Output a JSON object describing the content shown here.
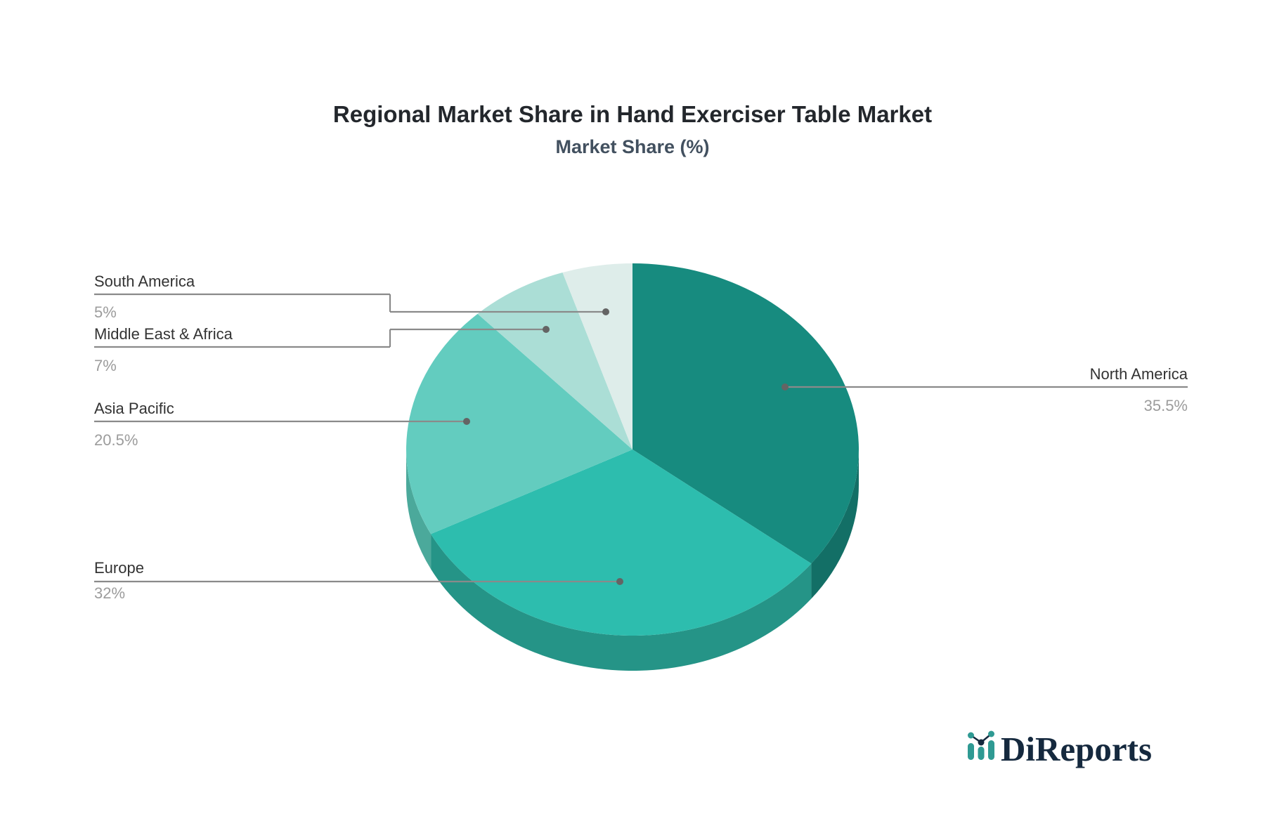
{
  "chart_data": {
    "type": "pie",
    "style": "3d-pie-with-callout-labels",
    "title": "Regional Market Share in Hand Exerciser Table Market",
    "subtitle": "Market Share (%)",
    "unit": "%",
    "direction": "clockwise",
    "start_angle_deg": 0,
    "legend_position": "callout-labels",
    "series": [
      {
        "label": "North America",
        "value": 35.5,
        "display": "35.5%",
        "color": "#178b7f",
        "side_color": "#136f66"
      },
      {
        "label": "Europe",
        "value": 32,
        "display": "32%",
        "color": "#2dbdae",
        "side_color": "#259487"
      },
      {
        "label": "Asia Pacific",
        "value": 20.5,
        "display": "20.5%",
        "color": "#63ccbf",
        "side_color": "#4ba99b"
      },
      {
        "label": "Middle East & Africa",
        "value": 7,
        "display": "7%",
        "color": "#abded6",
        "side_color": "#8cc8bf"
      },
      {
        "label": "South America",
        "value": 5,
        "display": "5%",
        "color": "#deedea",
        "side_color": "#bcd9d4"
      }
    ],
    "palette": {
      "background": "#ffffff",
      "title_text": "#23272c",
      "subtitle_text": "#42505f",
      "callout_line": "#8a8a8a",
      "callout_dot": "#646464",
      "label_text": "#333333",
      "value_text": "#9c9c9c"
    }
  },
  "branding": {
    "logo_text": "DiReports",
    "logo_navy": "#15293e",
    "logo_teal": "#2f9a93"
  }
}
